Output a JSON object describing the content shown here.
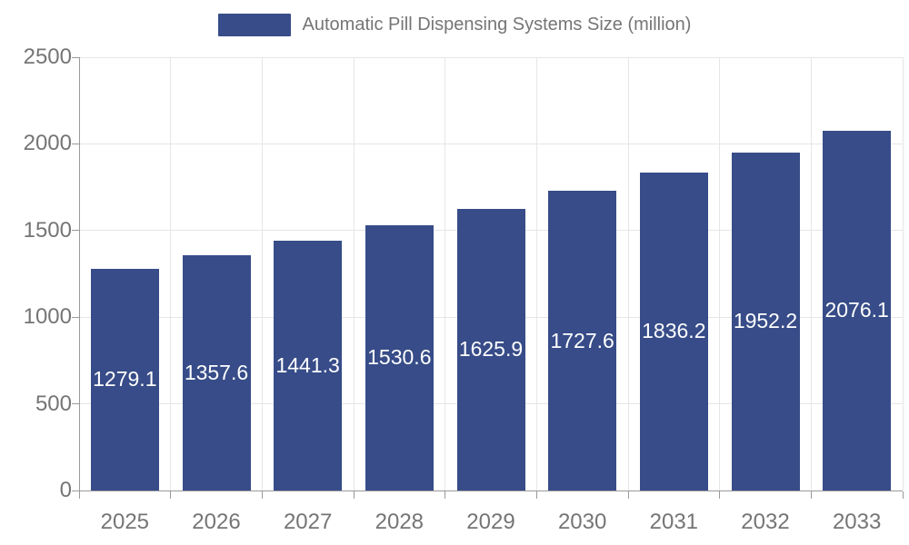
{
  "legend": {
    "label": "Automatic Pill Dispensing Systems Size (million)",
    "swatch_color": "#374c88"
  },
  "chart_data": {
    "type": "bar",
    "title": "Automatic Pill Dispensing Systems Size (million)",
    "series_name": "Automatic Pill Dispensing Systems Size (million)",
    "categories": [
      "2025",
      "2026",
      "2027",
      "2028",
      "2029",
      "2030",
      "2031",
      "2032",
      "2033"
    ],
    "values": [
      1279.1,
      1357.6,
      1441.3,
      1530.6,
      1625.9,
      1727.6,
      1836.2,
      1952.2,
      2076.1
    ],
    "value_labels": [
      "1279.1",
      "1357.6",
      "1441.3",
      "1530.6",
      "1625.9",
      "1727.6",
      "1836.2",
      "1952.2",
      "2076.1"
    ],
    "xlabel": "",
    "ylabel": "",
    "ylim": [
      0,
      2500
    ],
    "yticks": [
      0,
      500,
      1000,
      1500,
      2000,
      2500
    ],
    "grid": true,
    "legend_position": "top",
    "bar_color": "#374c88",
    "bar_label_color": "#ffffff",
    "axis_text_color": "#757575",
    "grid_color": "#e6e6e6",
    "axis_line_color": "#9a9a9a",
    "background_color": "#ffffff"
  }
}
